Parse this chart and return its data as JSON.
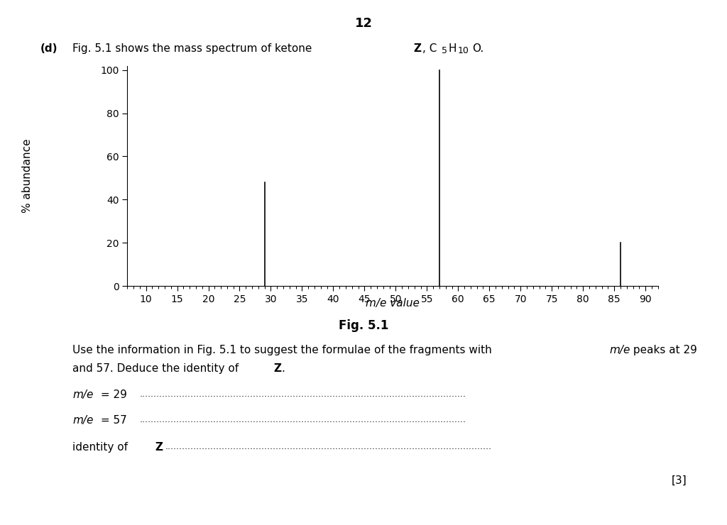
{
  "page_number": "12",
  "peaks": [
    {
      "mz": 29,
      "abundance": 48
    },
    {
      "mz": 57,
      "abundance": 100
    },
    {
      "mz": 86,
      "abundance": 20
    }
  ],
  "xmin": 7,
  "xmax": 92,
  "ymin": 0,
  "ymax": 100,
  "xticks": [
    10,
    15,
    20,
    25,
    30,
    35,
    40,
    45,
    50,
    55,
    60,
    65,
    70,
    75,
    80,
    85,
    90
  ],
  "yticks": [
    0,
    20,
    40,
    60,
    80,
    100
  ],
  "xlabel": "m/e value",
  "ylabel": "% abundance",
  "fig_label": "Fig. 5.1",
  "marks": "[3]",
  "bg_color": "#ffffff",
  "text_color": "#000000",
  "bar_color": "#000000"
}
